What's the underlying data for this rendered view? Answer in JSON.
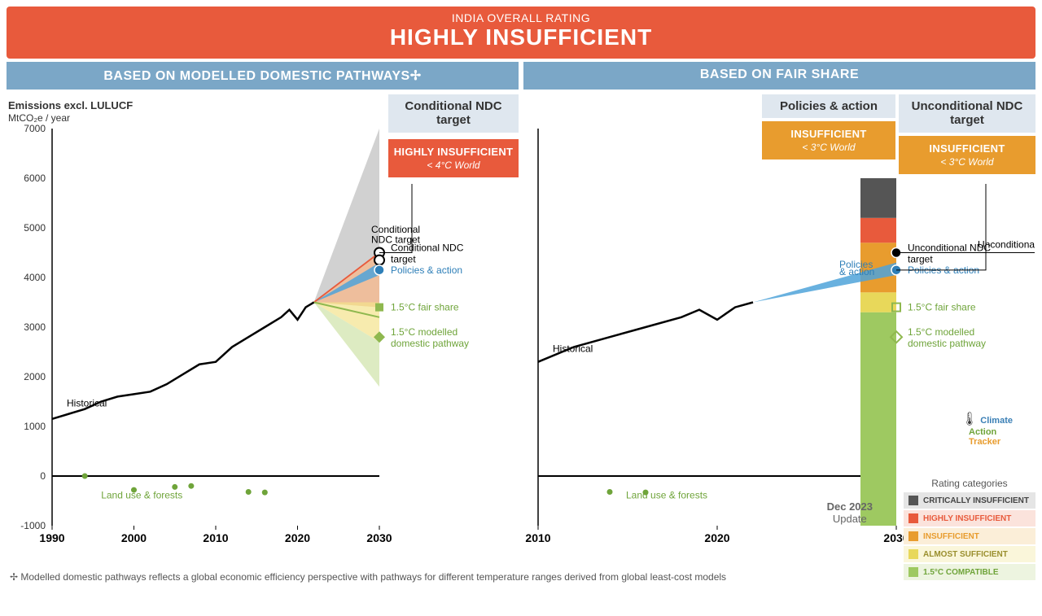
{
  "header": {
    "sub": "INDIA OVERALL RATING",
    "title": "HIGHLY INSUFFICIENT"
  },
  "col_heads": {
    "left": "BASED ON MODELLED DOMESTIC PATHWAYS✢",
    "right": "BASED ON FAIR SHARE"
  },
  "axis": {
    "title": "Emissions excl. LULUCF",
    "unit": "MtCO₂e / year",
    "ymin": -1000,
    "ymax": 7000,
    "ytick_step": 1000,
    "yticks": [
      -1000,
      0,
      1000,
      2000,
      3000,
      4000,
      5000,
      6000,
      7000
    ]
  },
  "left_chart": {
    "xmin": 1990,
    "xmax": 2030,
    "xticks": [
      1990,
      2000,
      2010,
      2020,
      2030
    ],
    "historical": {
      "x": [
        1990,
        1992,
        1994,
        1996,
        1998,
        2000,
        2002,
        2004,
        2006,
        2008,
        2010,
        2012,
        2014,
        2016,
        2018,
        2019,
        2020,
        2021,
        2022
      ],
      "y": [
        1150,
        1250,
        1350,
        1500,
        1600,
        1650,
        1700,
        1850,
        2050,
        2250,
        2300,
        2600,
        2800,
        3000,
        3200,
        3350,
        3150,
        3400,
        3500
      ],
      "color": "#000000",
      "width": 2.5,
      "label": "Historical"
    },
    "fan_grey": {
      "x": [
        2022,
        2030,
        2030
      ],
      "y": [
        3500,
        7000,
        3400
      ],
      "fill": "#b8b8b8",
      "opacity": 0.65
    },
    "fan_orange": {
      "x": [
        2022,
        2030,
        2030
      ],
      "y": [
        3500,
        4500,
        3400
      ],
      "fill": "#f5b98f",
      "opacity": 0.8
    },
    "fan_yellow": {
      "x": [
        2022,
        2030,
        2030
      ],
      "y": [
        3500,
        3500,
        2700
      ],
      "fill": "#f3e28b",
      "opacity": 0.7
    },
    "fan_lightgreen": {
      "x": [
        2022,
        2030,
        2030
      ],
      "y": [
        3500,
        2700,
        1800
      ],
      "fill": "#cfe3a8",
      "opacity": 0.7
    },
    "line_red": {
      "x": [
        2022,
        2030
      ],
      "y": [
        3500,
        4500
      ],
      "color": "#e85a3c",
      "width": 1.8
    },
    "line_green": {
      "x": [
        2022,
        2026,
        2030
      ],
      "y": [
        3500,
        3350,
        3200
      ],
      "color": "#8fb84f",
      "width": 2
    },
    "policies_fan": {
      "x": [
        2022,
        2030,
        2030
      ],
      "y": [
        3500,
        4300,
        4050
      ],
      "fill": "#4fa3d9",
      "opacity": 0.85
    },
    "markers": {
      "cond_ndc": {
        "x": 2030,
        "y": 4500,
        "shape": "circle-open",
        "color": "#000",
        "label": "Conditional NDC target"
      },
      "cond_ndc2": {
        "x": 2030,
        "y": 4350,
        "shape": "circle-open",
        "color": "#000"
      },
      "policies": {
        "x": 2030,
        "y": 4150,
        "shape": "circle",
        "color": "#2e7fb8",
        "label": "Policies & action"
      },
      "fair15": {
        "x": 2030,
        "y": 3400,
        "shape": "square",
        "color": "#8fb84f",
        "label": "1.5°C fair share"
      },
      "dom15": {
        "x": 2030,
        "y": 2800,
        "shape": "diamond",
        "color": "#8fb84f",
        "label": "1.5°C modelled domestic pathway"
      }
    },
    "lulucf": {
      "x": [
        1994,
        2000,
        2005,
        2007,
        2014,
        2016
      ],
      "y": [
        0,
        -280,
        -220,
        -200,
        -320,
        -330
      ],
      "color": "#6fa43a",
      "label": "Land use & forests"
    },
    "subhead": {
      "label": "Conditional NDC target",
      "rating": "HIGHLY INSUFFICIENT",
      "sub": "< 4°C World",
      "color": "#e85a3c"
    }
  },
  "right_chart": {
    "xmin": 2010,
    "xmax": 2030,
    "xticks": [
      2010,
      2020,
      2030
    ],
    "historical": {
      "x": [
        2010,
        2012,
        2014,
        2016,
        2018,
        2019,
        2020,
        2021,
        2022
      ],
      "y": [
        2300,
        2600,
        2800,
        3000,
        3200,
        3350,
        3150,
        3400,
        3500
      ],
      "color": "#000000",
      "width": 2.5,
      "label": "Historical"
    },
    "policies_fan": {
      "x": [
        2022,
        2030,
        2030
      ],
      "y": [
        3500,
        4300,
        4050
      ],
      "fill": "#4fa3d9",
      "opacity": 0.85
    },
    "bar": {
      "x": 2029,
      "width_years": 2,
      "bands": [
        {
          "from": -1000,
          "to": 3300,
          "color": "#9ec961"
        },
        {
          "from": 3300,
          "to": 3700,
          "color": "#e8d85a"
        },
        {
          "from": 3700,
          "to": 4700,
          "color": "#e89c2e"
        },
        {
          "from": 4700,
          "to": 5200,
          "color": "#e85a3c"
        },
        {
          "from": 5200,
          "to": 6000,
          "color": "#555555"
        }
      ]
    },
    "markers": {
      "uncond": {
        "x": 2030,
        "y": 4500,
        "shape": "circle",
        "color": "#000",
        "label": "Unconditional NDC target"
      },
      "policies": {
        "x": 2030,
        "y": 4150,
        "shape": "circle",
        "color": "#2e7fb8",
        "label": "Policies & action"
      },
      "fair15": {
        "x": 2030,
        "y": 3400,
        "shape": "square-open",
        "color": "#8fb84f",
        "label": "1.5°C fair share"
      },
      "dom15": {
        "x": 2030,
        "y": 2800,
        "shape": "diamond-open",
        "color": "#8fb84f",
        "label": "1.5°C modelled domestic pathway"
      }
    },
    "lulucf": {
      "x": [
        2014,
        2016
      ],
      "y": [
        -320,
        -330
      ],
      "color": "#6fa43a",
      "label": "Land use & forests"
    },
    "subheads": [
      {
        "label": "Policies & action",
        "rating": "INSUFFICIENT",
        "sub": "< 3°C World",
        "color": "#e89c2e"
      },
      {
        "label": "Unconditional NDC target",
        "rating": "INSUFFICIENT",
        "sub": "< 3°C World",
        "color": "#e89c2e"
      }
    ]
  },
  "legend": {
    "title": "Rating categories",
    "items": [
      {
        "label": "CRITICALLY INSUFFICIENT",
        "swatch": "#555555",
        "bg": "#e5e5e5"
      },
      {
        "label": "HIGHLY INSUFFICIENT",
        "swatch": "#e85a3c",
        "bg": "#fbe3dc",
        "text": "#e85a3c"
      },
      {
        "label": "INSUFFICIENT",
        "swatch": "#e89c2e",
        "bg": "#fbeed8",
        "text": "#e89c2e"
      },
      {
        "label": "ALMOST SUFFICIENT",
        "swatch": "#e8d85a",
        "bg": "#faf6da",
        "text": "#9a8f2e"
      },
      {
        "label": "1.5°C COMPATIBLE",
        "swatch": "#9ec961",
        "bg": "#edf4e0",
        "text": "#6fa43a"
      }
    ]
  },
  "brand": {
    "l1": "Climate",
    "l2": "Action",
    "l3": "Tracker"
  },
  "update": {
    "l1": "Dec 2023",
    "l2": "Update"
  },
  "footnote": "✢  Modelled domestic pathways reflects a global economic efficiency perspective with pathways for different temperature ranges derived from global least-cost models"
}
